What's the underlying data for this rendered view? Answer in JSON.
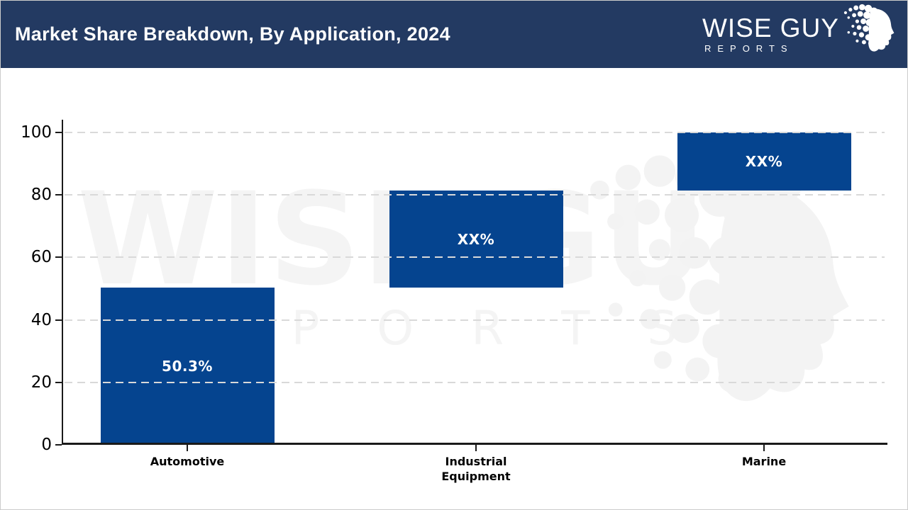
{
  "header": {
    "title": "Market Share Breakdown, By Application, 2024",
    "bg_color": "#233a62",
    "logo": {
      "brand_line1": "WISE GUY",
      "brand_line2": "REPORTS"
    }
  },
  "watermark": {
    "line1": "WISE GUY",
    "line2": "R E P O R T S"
  },
  "chart_data": {
    "type": "bar",
    "variant": "stacked-percentage-waterfall",
    "title": "Market Share Breakdown, By Application, 2024",
    "categories": [
      "Automotive",
      "Industrial Equipment",
      "Marine"
    ],
    "segments": [
      {
        "category": "Automotive",
        "start": 0,
        "end": 50.3,
        "value": 50.3,
        "value_label": "50.3%"
      },
      {
        "category": "Industrial Equipment",
        "start": 50.3,
        "end": 81.4,
        "value_approx": 31.1,
        "value_label": "XX%"
      },
      {
        "category": "Marine",
        "start": 81.4,
        "end": 100,
        "value_approx": 18.6,
        "value_label": "XX%"
      }
    ],
    "xlabel": "",
    "ylabel": "",
    "yticks": [
      0,
      20,
      40,
      60,
      80,
      100
    ],
    "ylim": [
      0,
      104
    ],
    "bar_color": "#05448f",
    "grid": {
      "axis": "y",
      "style": "dashed",
      "color": "#d9d9d9",
      "drawn_on_top": true
    },
    "legend": "none"
  }
}
